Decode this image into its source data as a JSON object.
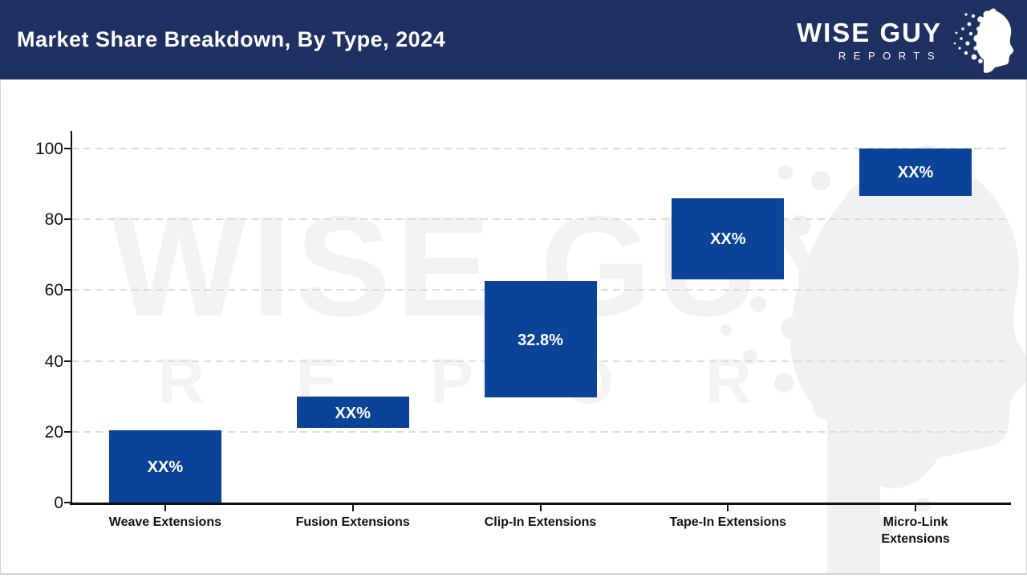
{
  "header": {
    "title": "Market Share Breakdown, By Type, 2024",
    "logo": {
      "primary": "WISE GUY",
      "secondary": "REPORTS"
    }
  },
  "watermark": {
    "primary": "WISE GUY",
    "secondary": "REPORTS"
  },
  "chart_data": {
    "type": "bar",
    "subtype": "floating-waterfall",
    "title": "Market Share Breakdown, By Type, 2024",
    "categories": [
      "Weave Extensions",
      "Fusion Extensions",
      "Clip-In Extensions",
      "Tape-In Extensions",
      "Micro-Link Extensions"
    ],
    "bars": [
      {
        "category": "Weave Extensions",
        "from": 0,
        "to": 20.5,
        "label": "XX%"
      },
      {
        "category": "Fusion Extensions",
        "from": 21,
        "to": 30,
        "label": "XX%"
      },
      {
        "category": "Clip-In Extensions",
        "from": 29.7,
        "to": 62.5,
        "label": "32.8%"
      },
      {
        "category": "Tape-In Extensions",
        "from": 63,
        "to": 86,
        "label": "XX%"
      },
      {
        "category": "Micro-Link Extensions",
        "from": 86.7,
        "to": 100,
        "label": "XX%"
      }
    ],
    "xlabel": "",
    "ylabel": "",
    "ylim": [
      0,
      100
    ],
    "yticks": [
      0,
      20,
      40,
      60,
      80,
      100
    ],
    "grid": "horizontal-dashed",
    "legend": "none",
    "bar_color": "#0a4398",
    "bar_label_color": "#ffffff"
  },
  "colors": {
    "header_bg": "#1f3163",
    "bar": "#0a4398",
    "grid": "#dcdcdc",
    "axis": "#111111",
    "watermark": "#f2f2f3",
    "page_border": "#d2d2d2"
  }
}
